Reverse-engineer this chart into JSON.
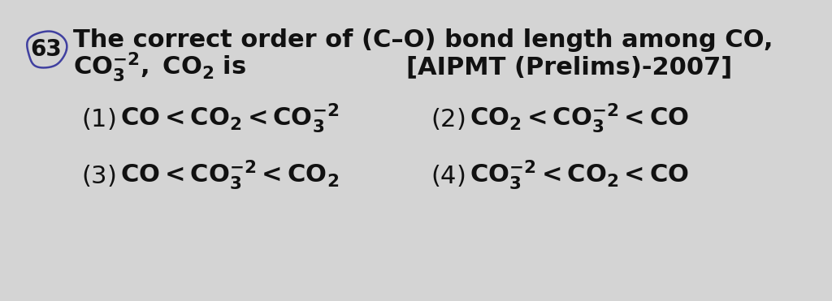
{
  "background_color": "#d4d4d4",
  "question_number": "63",
  "circle_color": "#4040a0",
  "text_color": "#111111",
  "title_line1": "The correct order of (C–O) bond length among CO,",
  "title_line2_ref": "[AIPMT (Prelims)-2007]",
  "font_size_title": 22,
  "font_size_options": 22,
  "font_size_number": 20,
  "font_size_ref": 22,
  "fig_width": 10.24,
  "fig_height": 3.71,
  "dpi": 100
}
